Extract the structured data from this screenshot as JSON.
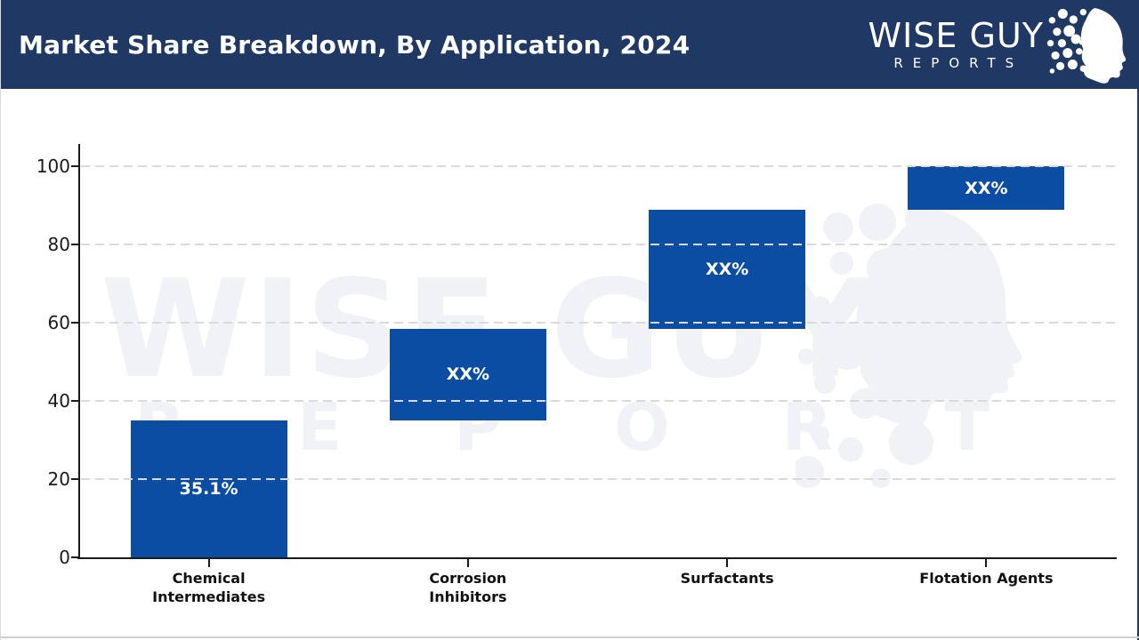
{
  "header": {
    "title": "Market Share Breakdown, By Application, 2024",
    "bg_color": "#1f3864",
    "logo": {
      "line1": "WISE GUY",
      "line2": "REPORTS"
    }
  },
  "watermark": {
    "line1": "WISE GUY",
    "line2": "REPORTS"
  },
  "colors": {
    "header_bg": "#1f3864",
    "bar": "#0b4da2",
    "gridline": "#d9d9d9",
    "watermark": "#f0f2f5",
    "bar_label": "#ffffff"
  },
  "chart_data": {
    "type": "bar",
    "subtype": "waterfall",
    "title": "Market Share Breakdown, By Application, 2024",
    "categories": [
      "Chemical Intermediates",
      "Corrosion Inhibitors",
      "Surfactants",
      "Flotation Agents"
    ],
    "category_label_lines": [
      [
        "Chemical",
        "Intermediates"
      ],
      [
        "Corrosion",
        "Inhibitors"
      ],
      [
        "Surfactants"
      ],
      [
        "Flotation Agents"
      ]
    ],
    "series": [
      {
        "name": "Market Share",
        "segments": [
          {
            "category": "Chemical Intermediates",
            "start": 0,
            "end": 35.1,
            "label": "35.1%"
          },
          {
            "category": "Corrosion Inhibitors",
            "start": 35.1,
            "end": 58.5,
            "label": "XX%"
          },
          {
            "category": "Surfactants",
            "start": 58.5,
            "end": 88.8,
            "label": "XX%"
          },
          {
            "category": "Flotation Agents",
            "start": 88.8,
            "end": 100,
            "label": "XX%"
          }
        ]
      }
    ],
    "xlabel": "",
    "ylabel": "",
    "ylim": [
      0,
      105
    ],
    "yticks": [
      0,
      20,
      40,
      60,
      80,
      100
    ],
    "grid": "horizontal dashed, drawn above bars",
    "legend": "none",
    "bar_color": "#0b4da2",
    "label_color": "#ffffff"
  }
}
